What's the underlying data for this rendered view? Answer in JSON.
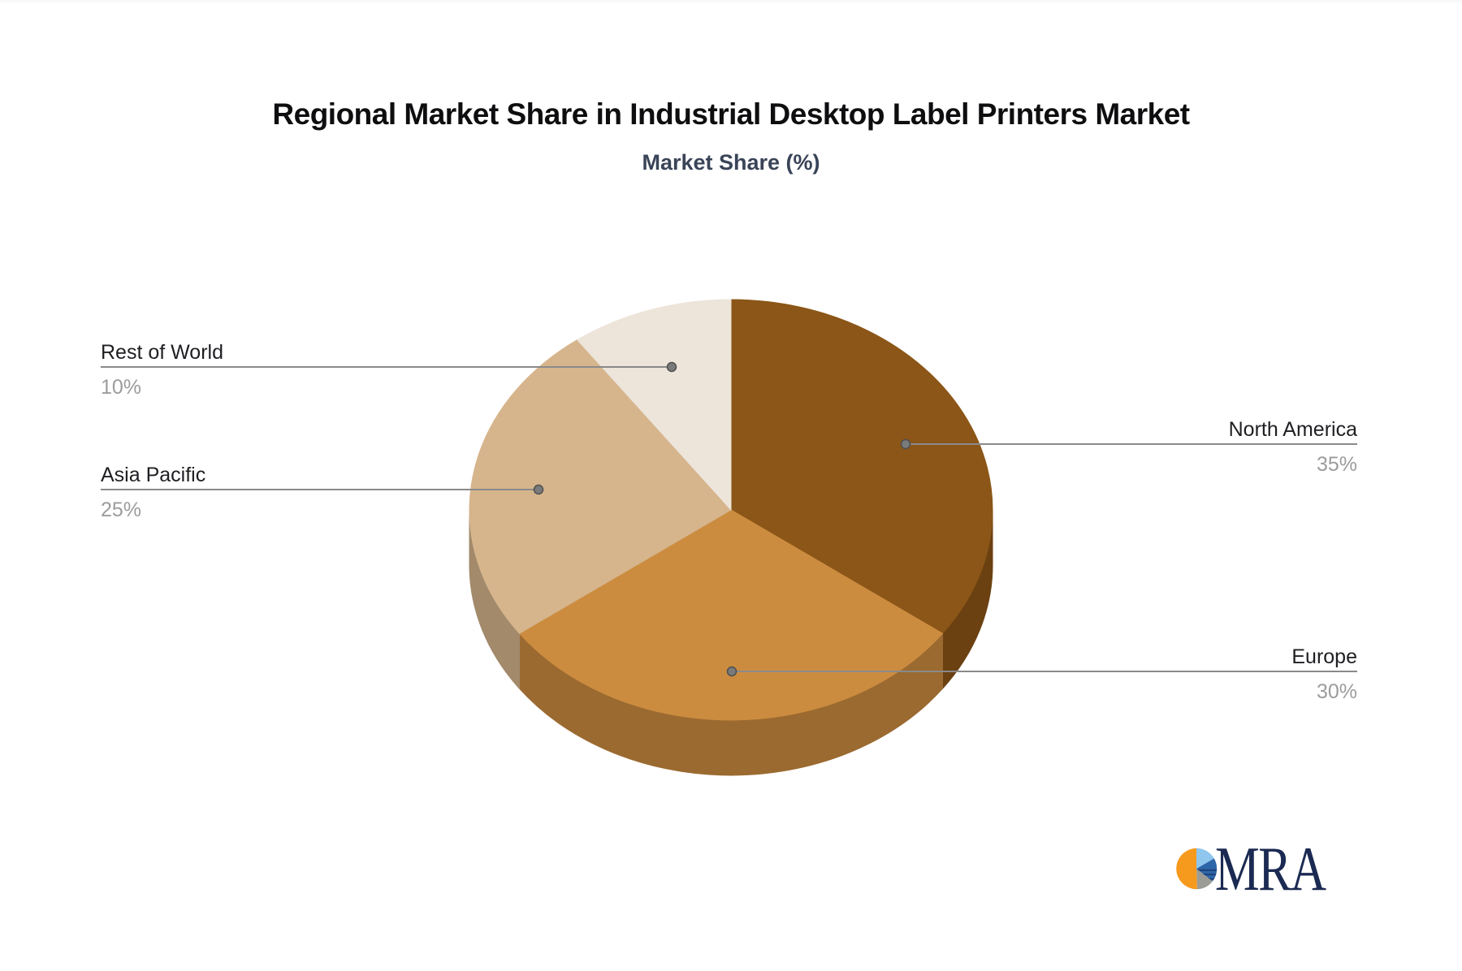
{
  "chart_data": {
    "type": "pie",
    "effect": "3d",
    "title": "Regional Market Share in Industrial Desktop Label Printers Market",
    "subtitle": "Market Share (%)",
    "unit": "%",
    "start_angle": "12 o'clock, clockwise",
    "legend_position": "leader-line labels (left and right of pie)",
    "slices": [
      {
        "label": "North America",
        "value": 35,
        "value_label": "35%",
        "color": "#8B5617",
        "side_color": "#6B4112"
      },
      {
        "label": "Europe",
        "value": 30,
        "value_label": "30%",
        "color": "#CC8C40",
        "side_color": "#9B6A30"
      },
      {
        "label": "Asia Pacific",
        "value": 25,
        "value_label": "25%",
        "color": "#D6B58D",
        "side_color": "#A28A6B"
      },
      {
        "label": "Rest of World",
        "value": 10,
        "value_label": "10%",
        "color": "#EDE4DA",
        "side_color": "#BFB3A4"
      }
    ],
    "label_text_color": "#1F1F23",
    "value_text_color": "#9C9C9C",
    "leader_line_color": "#8A8A8A"
  },
  "branding": {
    "logo_text": "MRA",
    "logo_text_color": "#1B2A52",
    "icon_colors": [
      "#8EC6EE",
      "#2D66A8",
      "#9C9C96",
      "#F69A1E"
    ],
    "icon_stripe_color": "#1B3F73"
  }
}
